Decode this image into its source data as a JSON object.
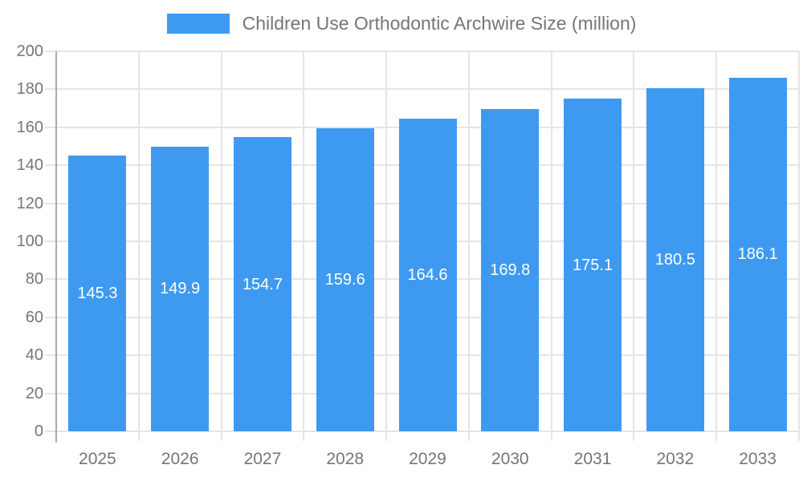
{
  "legend": {
    "label": "Children Use Orthodontic Archwire Size (million)"
  },
  "colors": {
    "bar": "#3D9AF0",
    "grid": "#E5E5E5",
    "axis_line": "#ABABAB",
    "tick_text": "#757575",
    "value_text": "#FFFFFF",
    "background": "#FFFFFF"
  },
  "chart_data": {
    "type": "bar",
    "title": "Children Use Orthodontic Archwire Size (million)",
    "legend_label": "Children Use Orthodontic Archwire Size (million)",
    "categories": [
      "2025",
      "2026",
      "2027",
      "2028",
      "2029",
      "2030",
      "2031",
      "2032",
      "2033"
    ],
    "values": [
      145.3,
      149.9,
      154.7,
      159.6,
      164.6,
      169.8,
      175.1,
      180.5,
      186.1
    ],
    "value_labels": [
      "145.3",
      "149.9",
      "154.7",
      "159.6",
      "164.6",
      "169.8",
      "175.1",
      "180.5",
      "186.1"
    ],
    "ytick_labels": [
      "0",
      "20",
      "40",
      "60",
      "80",
      "100",
      "120",
      "140",
      "160",
      "180",
      "200"
    ],
    "xlabel": "",
    "ylabel": "",
    "ylim": [
      0,
      200
    ],
    "ytick_step": 20,
    "grid": "on",
    "legend_position": "top-center",
    "value_label_position": "inside-center"
  }
}
